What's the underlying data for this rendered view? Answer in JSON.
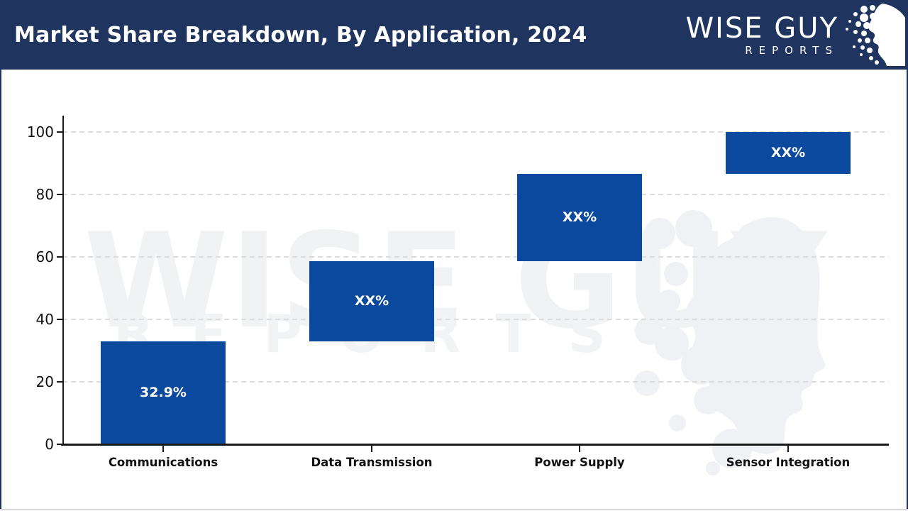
{
  "header": {
    "title": "Market Share Breakdown, By Application, 2024",
    "bg_color": "#1f3560",
    "logo": {
      "line1": "WISE GUY",
      "line2": "REPORTS"
    }
  },
  "watermark": {
    "line1": "WISE GUY",
    "line2": "REPORTS"
  },
  "chart_data": {
    "type": "bar",
    "subtype": "waterfall",
    "title": "Market Share Breakdown, By Application, 2024",
    "categories": [
      "Communications",
      "Data Transmission",
      "Power Supply",
      "Sensor Integration"
    ],
    "segments": [
      {
        "category": "Communications",
        "start": 0,
        "end": 32.9,
        "label": "32.9%"
      },
      {
        "category": "Data Transmission",
        "start": 32.9,
        "end": 58.5,
        "label": "XX%"
      },
      {
        "category": "Power Supply",
        "start": 58.5,
        "end": 86.5,
        "label": "XX%"
      },
      {
        "category": "Sensor Integration",
        "start": 86.5,
        "end": 100,
        "label": "XX%"
      }
    ],
    "xlabel": "",
    "ylabel": "",
    "y_ticks": [
      0,
      20,
      40,
      60,
      80,
      100
    ],
    "ylim": [
      0,
      105
    ],
    "grid": "horizontal-dashed",
    "legend": "none",
    "bar_color": "#0a499e",
    "bar_label_color": "#ffffff",
    "axis_color": "#1a1a1a",
    "grid_color": "#dcdcdc"
  }
}
